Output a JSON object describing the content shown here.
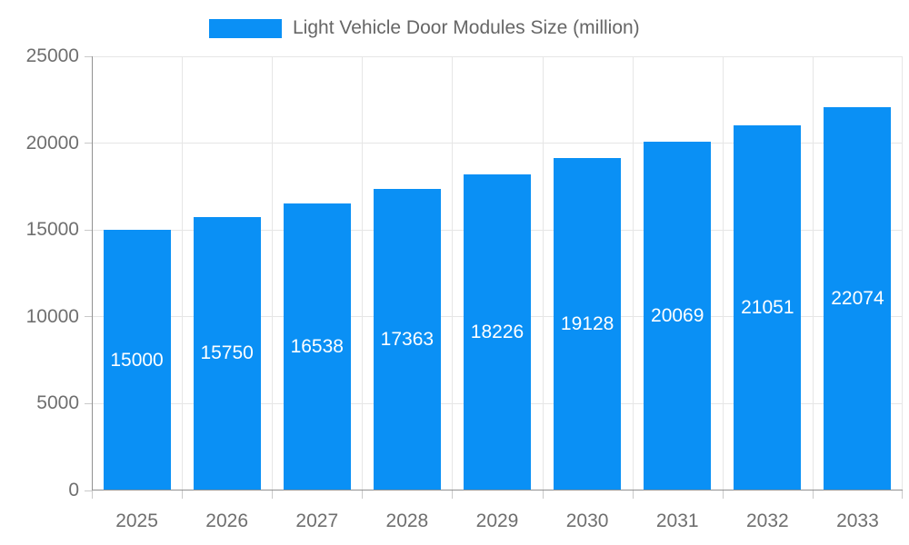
{
  "chart_data": {
    "type": "bar",
    "title": "Light Vehicle Door Modules Size (million)",
    "categories": [
      "2025",
      "2026",
      "2027",
      "2028",
      "2029",
      "2030",
      "2031",
      "2032",
      "2033"
    ],
    "values": [
      15000,
      15750,
      16538,
      17363,
      18226,
      19128,
      20069,
      21051,
      22074
    ],
    "bar_value_labels": [
      "15000",
      "15750",
      "16538",
      "17363",
      "18226",
      "19128",
      "20069",
      "21051",
      "22074"
    ],
    "xlabel": "",
    "ylabel": "",
    "ylim": [
      0,
      25000
    ],
    "yticks": [
      0,
      5000,
      10000,
      15000,
      20000,
      25000
    ],
    "ytick_labels": [
      "0",
      "5000",
      "10000",
      "15000",
      "20000",
      "25000"
    ],
    "grid": true,
    "legend_position": "top",
    "colors": {
      "bar": "#0a90f5",
      "bar_label": "#ffffff",
      "grid": "#e6e6e6",
      "axis": "#919191",
      "tick": "#c9c9c9",
      "tick_label": "#6f6f6f",
      "legend_text": "#666666",
      "background": "#ffffff"
    }
  }
}
